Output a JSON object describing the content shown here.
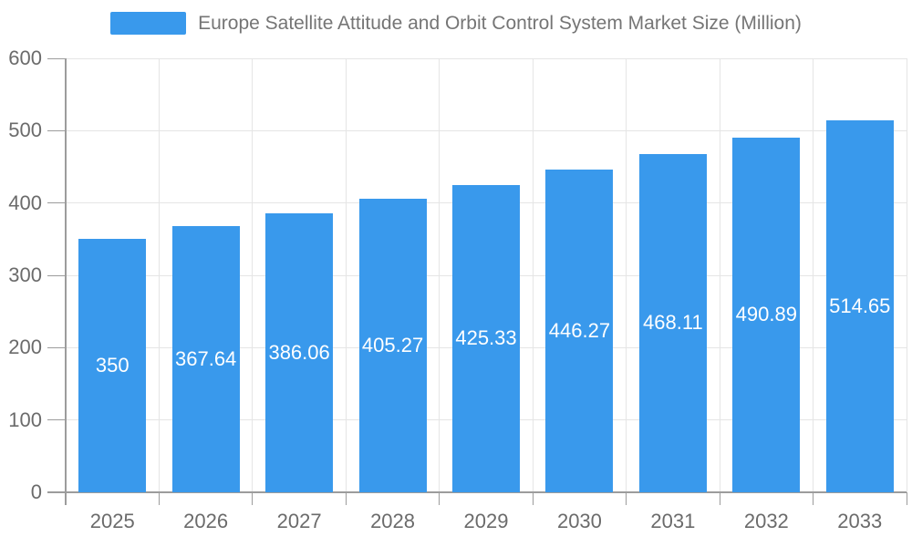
{
  "chart_data": {
    "type": "bar",
    "title": "Europe Satellite Attitude and Orbit Control System Market Size (Million)",
    "categories": [
      "2025",
      "2026",
      "2027",
      "2028",
      "2029",
      "2030",
      "2031",
      "2032",
      "2033"
    ],
    "series": [
      {
        "name": "Europe Satellite Attitude and Orbit Control System Market Size (Million)",
        "color": "#3999EC",
        "values": [
          350,
          367.64,
          386.06,
          405.27,
          425.33,
          446.27,
          468.11,
          490.89,
          514.65
        ]
      }
    ],
    "value_labels": [
      "350",
      "367.64",
      "386.06",
      "405.27",
      "425.33",
      "446.27",
      "468.11",
      "490.89",
      "514.65"
    ],
    "xlabel": "",
    "ylabel": "",
    "ylim": [
      0,
      600
    ],
    "yticks": [
      0,
      100,
      200,
      300,
      400,
      500,
      600
    ],
    "grid": "on",
    "legend_position": "top",
    "value_label_position": "center-of-bar",
    "colors": {
      "bar": "#3999EC",
      "grid": "#e5e5e5",
      "axis": "#9c9c9c",
      "tick_label": "#6b6b6b",
      "title_text": "#757575",
      "value_label": "#ffffff",
      "background": "#ffffff"
    }
  }
}
